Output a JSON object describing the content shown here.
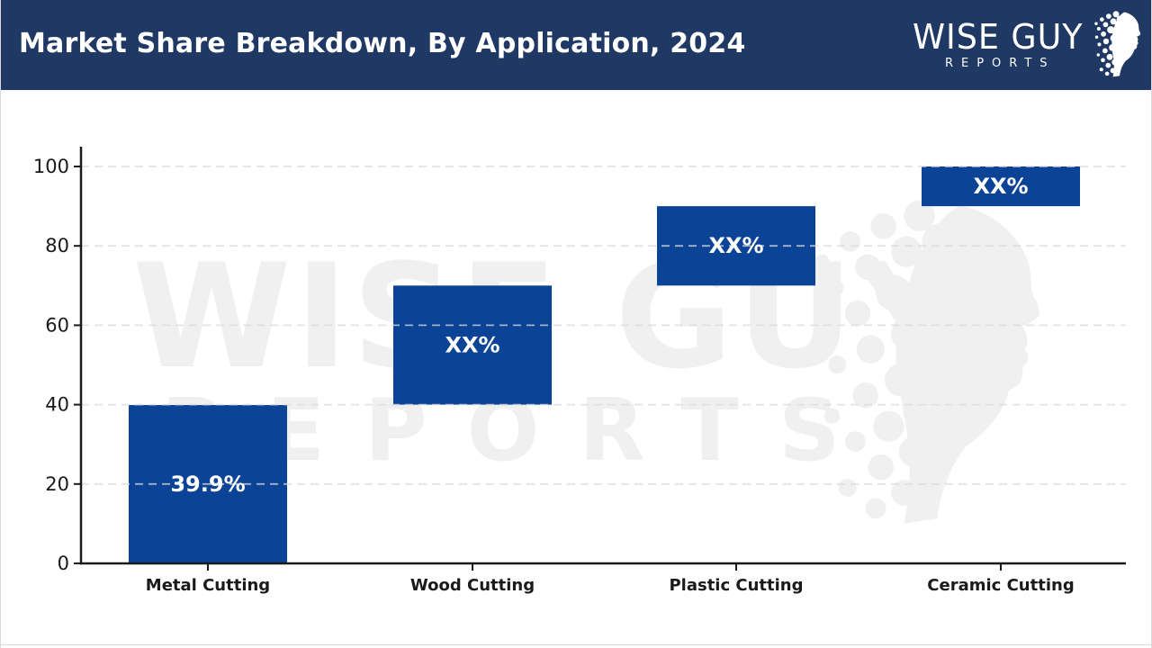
{
  "header": {
    "title": "Market Share Breakdown, By Application, 2024",
    "background_color": "#1f3864",
    "logo": {
      "line1": "WISE GUY",
      "line2": "REPORTS"
    }
  },
  "watermark": {
    "line1": "WISE GUY",
    "line2": "REPORTS"
  },
  "chart_data": {
    "type": "bar",
    "subtype": "waterfall",
    "title": "Market Share Breakdown, By Application, 2024",
    "categories": [
      "Metal Cutting",
      "Wood Cutting",
      "Plastic Cutting",
      "Ceramic Cutting"
    ],
    "segments": [
      {
        "category": "Metal Cutting",
        "start": 0,
        "end": 39.9,
        "label": "39.9%"
      },
      {
        "category": "Wood Cutting",
        "start": 40,
        "end": 70,
        "label": "XX%"
      },
      {
        "category": "Plastic Cutting",
        "start": 70,
        "end": 90,
        "label": "XX%"
      },
      {
        "category": "Ceramic Cutting",
        "start": 90,
        "end": 100,
        "label": "XX%"
      }
    ],
    "xlabel": "",
    "ylabel": "",
    "ylim": [
      0,
      100
    ],
    "yticks": [
      0,
      20,
      40,
      60,
      80,
      100
    ],
    "grid": "horizontal-dashed",
    "legend": "none",
    "bar_color": "#0b4397",
    "bar_label_color": "#ffffff",
    "axis_color": "#1a1a1a",
    "gridline_color": "#d9d9d9"
  }
}
